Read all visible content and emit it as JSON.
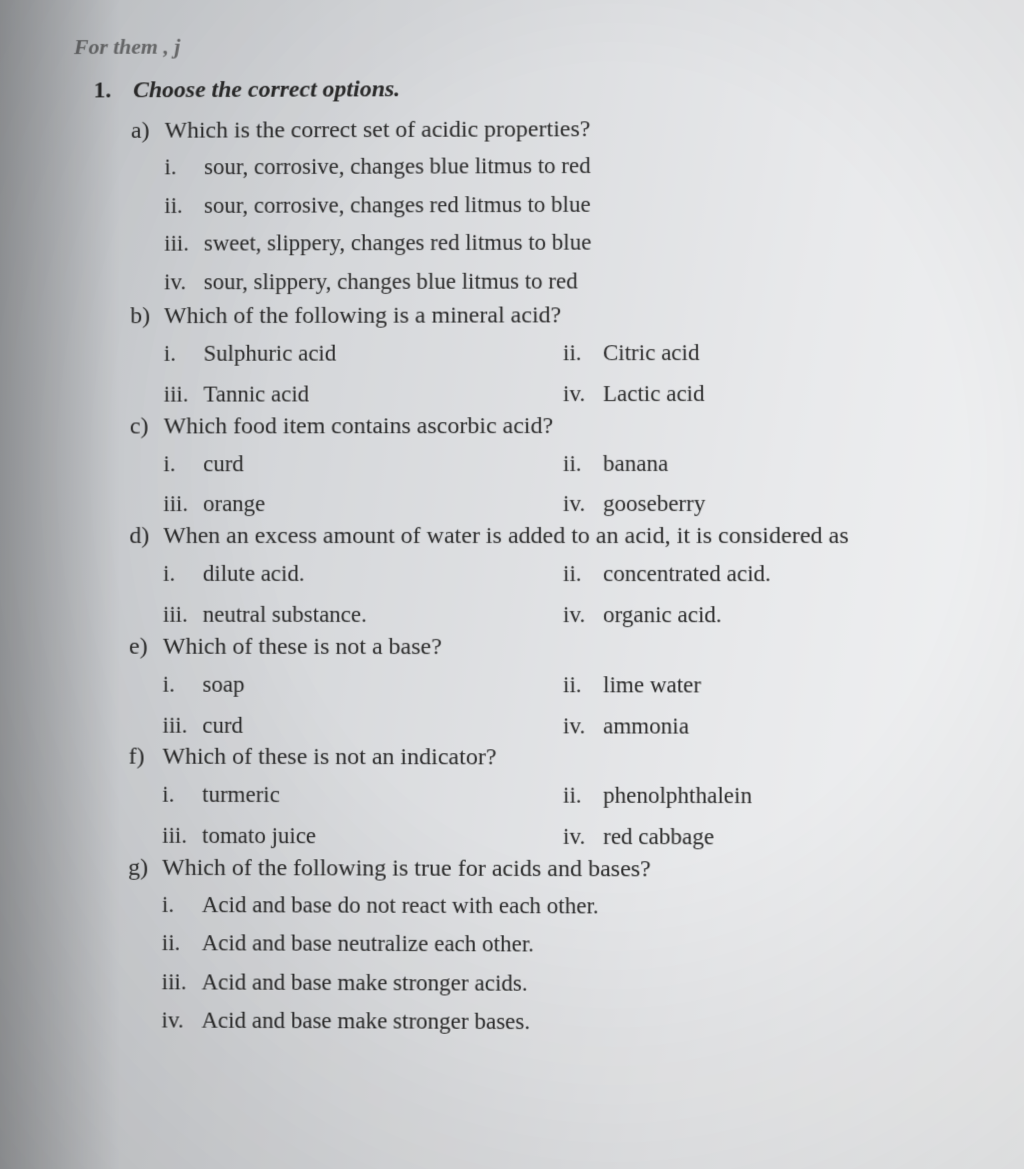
{
  "partial_top": "For them , j",
  "main_number": "1.",
  "main_text": "Choose the correct options.",
  "questions": [
    {
      "label": "a)",
      "text": "Which is the correct set of acidic properties?",
      "layout": "single",
      "options": [
        {
          "label": "i.",
          "text": "sour, corrosive, changes blue litmus to red"
        },
        {
          "label": "ii.",
          "text": "sour, corrosive, changes red litmus to blue"
        },
        {
          "label": "iii.",
          "text": "sweet, slippery, changes red litmus to blue"
        },
        {
          "label": "iv.",
          "text": "sour, slippery, changes blue litmus to red"
        }
      ]
    },
    {
      "label": "b)",
      "text": "Which of the following is a mineral acid?",
      "layout": "two-col",
      "options": [
        {
          "label": "i.",
          "text": "Sulphuric acid"
        },
        {
          "label": "ii.",
          "text": "Citric acid"
        },
        {
          "label": "iii.",
          "text": "Tannic acid"
        },
        {
          "label": "iv.",
          "text": "Lactic acid"
        }
      ]
    },
    {
      "label": "c)",
      "text": "Which food item contains ascorbic acid?",
      "layout": "two-col",
      "options": [
        {
          "label": "i.",
          "text": "curd"
        },
        {
          "label": "ii.",
          "text": "banana"
        },
        {
          "label": "iii.",
          "text": "orange"
        },
        {
          "label": "iv.",
          "text": "gooseberry"
        }
      ]
    },
    {
      "label": "d)",
      "text": "When an excess amount of water is added to an acid, it is considered as",
      "layout": "two-col",
      "options": [
        {
          "label": "i.",
          "text": "dilute acid."
        },
        {
          "label": "ii.",
          "text": "concentrated acid."
        },
        {
          "label": "iii.",
          "text": "neutral substance."
        },
        {
          "label": "iv.",
          "text": "organic acid."
        }
      ]
    },
    {
      "label": "e)",
      "text": "Which of these is not a base?",
      "layout": "two-col",
      "options": [
        {
          "label": "i.",
          "text": "soap"
        },
        {
          "label": "ii.",
          "text": "lime water"
        },
        {
          "label": "iii.",
          "text": "curd"
        },
        {
          "label": "iv.",
          "text": "ammonia"
        }
      ]
    },
    {
      "label": "f)",
      "text": "Which of these is not an indicator?",
      "layout": "two-col",
      "options": [
        {
          "label": "i.",
          "text": "turmeric"
        },
        {
          "label": "ii.",
          "text": "phenolphthalein"
        },
        {
          "label": "iii.",
          "text": "tomato juice"
        },
        {
          "label": "iv.",
          "text": "red cabbage"
        }
      ]
    },
    {
      "label": "g)",
      "text": "Which of the following is true for acids and bases?",
      "layout": "single",
      "options": [
        {
          "label": "i.",
          "text": "Acid and base do not react with each other."
        },
        {
          "label": "ii.",
          "text": "Acid and base neutralize each other."
        },
        {
          "label": "iii.",
          "text": "Acid and base make stronger acids."
        },
        {
          "label": "iv.",
          "text": "Acid and base make stronger bases."
        }
      ]
    }
  ]
}
